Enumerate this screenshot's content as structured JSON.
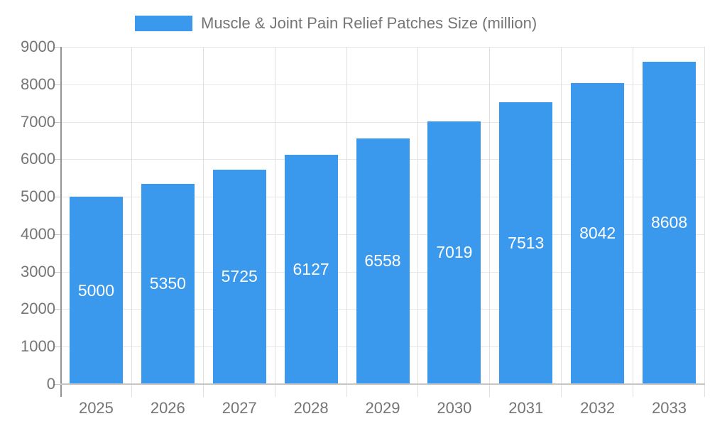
{
  "legend": {
    "label": "Muscle & Joint Pain Relief Patches Size (million)",
    "swatch_color": "#3a99ec"
  },
  "chart_data": {
    "type": "bar",
    "title": "Muscle & Joint Pain Relief Patches Size (million)",
    "categories": [
      "2025",
      "2026",
      "2027",
      "2028",
      "2029",
      "2030",
      "2031",
      "2032",
      "2033"
    ],
    "values": [
      5000,
      5350,
      5725,
      6127,
      6558,
      7019,
      7513,
      8042,
      8608
    ],
    "xlabel": "",
    "ylabel": "",
    "ylim": [
      0,
      9000
    ],
    "ytick_step": 1000,
    "yticks": [
      0,
      1000,
      2000,
      3000,
      4000,
      5000,
      6000,
      7000,
      8000,
      9000
    ],
    "legend_position": "top",
    "grid": true,
    "bar_color": "#3a99ec",
    "value_label_color": "#ffffff",
    "axis_text_color": "#757575",
    "gridline_color": "#e6e6e6",
    "axis_line_color": "#949494",
    "tick_color": "#c6c6c6"
  }
}
